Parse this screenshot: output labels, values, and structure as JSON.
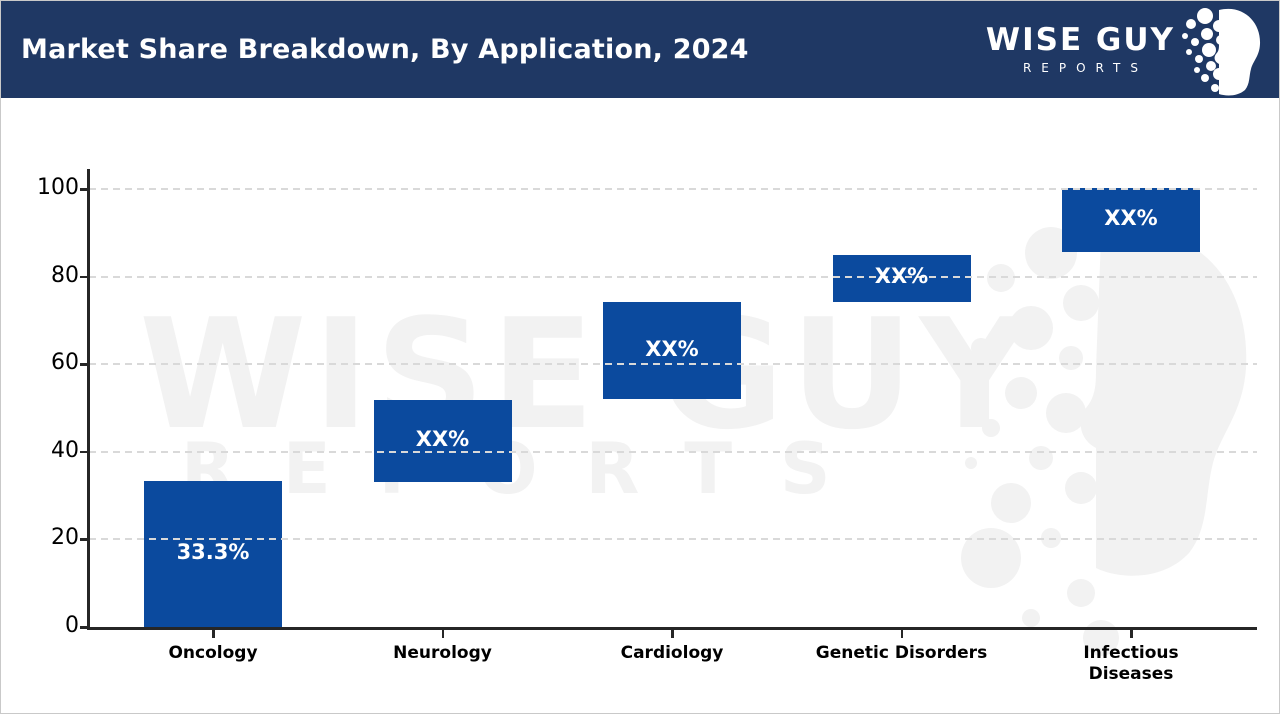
{
  "header": {
    "title": "Market Share Breakdown, By Application, 2024",
    "logo": {
      "wordmark": "WISE GUY",
      "tagline": "REPORTS"
    }
  },
  "watermark": {
    "line1": "WISE GUY",
    "line2": "REPORTS"
  },
  "colors": {
    "header_bg": "#1f3864",
    "bar": "#0b4a9e",
    "bar_label": "#ffffff",
    "grid": "#d9d9d9",
    "axis": "#262626",
    "tick_label": "#000000",
    "watermark": "#f2f2f2",
    "page_border": "#c9c9c9",
    "background": "#ffffff"
  },
  "chart_data": {
    "type": "bar",
    "subtype": "waterfall",
    "title": "Market Share Breakdown, By Application, 2024",
    "xlabel": "",
    "ylabel": "",
    "categories": [
      "Oncology",
      "Neurology",
      "Cardiology",
      "Genetic Disorders",
      "Infectious\nDiseases"
    ],
    "series": [
      {
        "name": "Market share (%)",
        "segments": [
          {
            "from": 0,
            "to": 33.3
          },
          {
            "from": 33.2,
            "to": 51.9
          },
          {
            "from": 52.1,
            "to": 74.1
          },
          {
            "from": 74.3,
            "to": 85.0
          },
          {
            "from": 85.5,
            "to": 100.3
          }
        ]
      }
    ],
    "bar_labels": [
      "33.3%",
      "XX%",
      "XX%",
      "XX%",
      "XX%"
    ],
    "yticks": [
      0,
      20,
      40,
      60,
      80,
      100
    ],
    "ylim": [
      0,
      105
    ],
    "grid": "horizontal-dashed",
    "gridlines_above_bars": true,
    "legend": "none"
  }
}
